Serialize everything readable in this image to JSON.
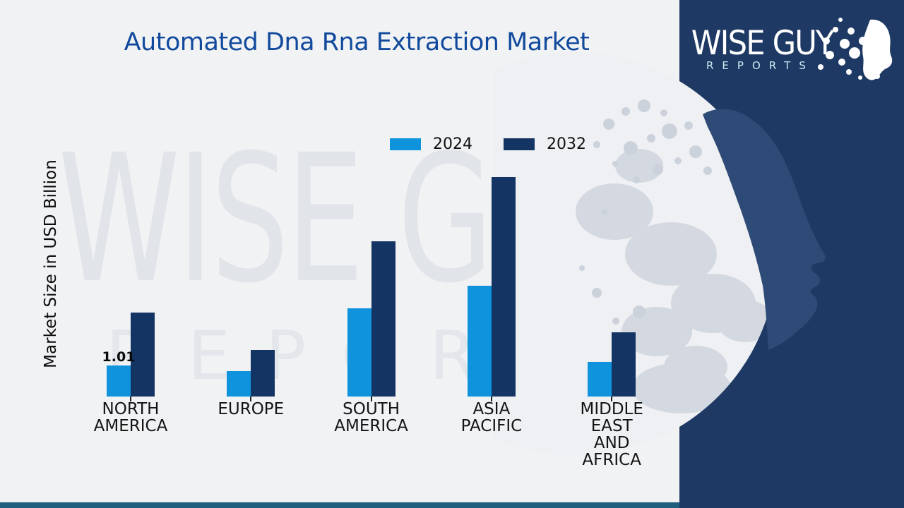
{
  "page": {
    "background": "#f1f2f4",
    "bottom_strip_color": "#1e5f7d"
  },
  "title": {
    "text": "Automated Dna Rna Extraction Market",
    "color": "#114a9d"
  },
  "watermark": {
    "line1": "WISE GUY",
    "line2": "REPORTS"
  },
  "logo": {
    "name": "WISE GUY",
    "sub": "REPORTS",
    "bg": "#1e3a64",
    "face_color": "#2d4b76"
  },
  "y_axis": {
    "label": "Market Size in USD Billion"
  },
  "legend": {
    "items": [
      {
        "label": "2024",
        "color": "#0e93dc"
      },
      {
        "label": "2032",
        "color": "#143463"
      }
    ]
  },
  "chart_data": {
    "type": "bar",
    "title": "Automated Dna Rna Extraction Market",
    "ylabel": "Market Size in USD Billion",
    "unit": "USD Billion",
    "categories": [
      "NORTH AMERICA",
      "EUROPE",
      "SOUTH AMERICA",
      "ASIA PACIFIC",
      "MIDDLE EAST AND AFRICA"
    ],
    "category_label_lines": [
      [
        "NORTH",
        "AMERICA"
      ],
      [
        "EUROPE"
      ],
      [
        "SOUTH",
        "AMERICA"
      ],
      [
        "ASIA",
        "PACIFIC"
      ],
      [
        "MIDDLE",
        "EAST",
        "AND",
        "AFRICA"
      ]
    ],
    "series": [
      {
        "name": "2024",
        "color": "#0e93dc",
        "values": [
          1.01,
          0.83,
          2.87,
          3.6,
          1.12
        ]
      },
      {
        "name": "2032",
        "color": "#143463",
        "values": [
          2.73,
          1.51,
          5.05,
          7.13,
          2.09
        ]
      }
    ],
    "data_labels": [
      {
        "series": "2024",
        "category_index": 0,
        "text": "1.01"
      }
    ],
    "ylim": [
      0,
      7.5
    ],
    "grid": false,
    "legend_position": "top-center"
  }
}
